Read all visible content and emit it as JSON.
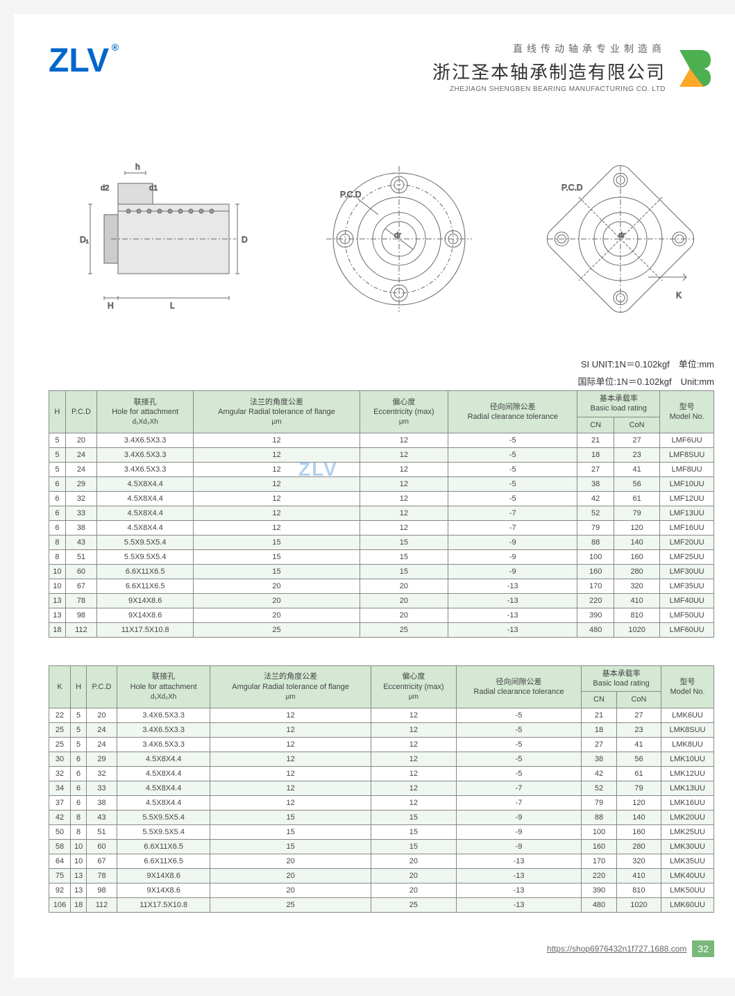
{
  "logo_text": "ZLV",
  "tagline": "直线传动轴承专业制造商",
  "company_cn": "浙江圣本轴承制造有限公司",
  "company_en": "ZHEJIAGN SHENGBEN BEARING MANUFACTURING CO. LTD",
  "logo_colors": {
    "green": "#4caf50",
    "orange": "#ffa726"
  },
  "watermark": "ZLV",
  "unit_line1": "SI UNIT:1N＝0.102kgf　单位:mm",
  "unit_line2": "国际单位:1N＝0.102kgf　Unit:mm",
  "diagram_labels": {
    "h": "h",
    "d2": "d2",
    "d1": "d1",
    "D1": "D1",
    "D": "D",
    "H": "H",
    "L": "L",
    "pcd": "P.C.D",
    "dr": "dr",
    "K": "K"
  },
  "table1": {
    "headers": {
      "H": "H",
      "PCD": "P.C.D",
      "hole_cn": "联接孔",
      "hole_en": "Hole for attachment",
      "hole_sub": "d₁Xd₂Xh",
      "flange_cn": "法兰的角度公差",
      "flange_en": "Amgular Radial tolerance of flange",
      "ecc_cn": "偏心度",
      "ecc_en": "Eccentricity (max)",
      "radial_cn": "径向间隙公差",
      "radial_en": "Radial clearance tolerance",
      "load_cn": "基本承载率",
      "load_en": "Basic load rating",
      "CN": "CN",
      "CoN": "CoN",
      "model_cn": "型号",
      "model_en": "Model No.",
      "um": "μm"
    },
    "rows": [
      [
        "5",
        "20",
        "3.4X6.5X3.3",
        "12",
        "12",
        "-5",
        "21",
        "27",
        "LMF6UU"
      ],
      [
        "5",
        "24",
        "3.4X6.5X3.3",
        "12",
        "12",
        "-5",
        "18",
        "23",
        "LMF8SUU"
      ],
      [
        "5",
        "24",
        "3.4X6.5X3.3",
        "12",
        "12",
        "-5",
        "27",
        "41",
        "LMF8UU"
      ],
      [
        "6",
        "29",
        "4.5X8X4.4",
        "12",
        "12",
        "-5",
        "38",
        "56",
        "LMF10UU"
      ],
      [
        "6",
        "32",
        "4.5X8X4.4",
        "12",
        "12",
        "-5",
        "42",
        "61",
        "LMF12UU"
      ],
      [
        "6",
        "33",
        "4.5X8X4.4",
        "12",
        "12",
        "-7",
        "52",
        "79",
        "LMF13UU"
      ],
      [
        "6",
        "38",
        "4.5X8X4.4",
        "12",
        "12",
        "-7",
        "79",
        "120",
        "LMF16UU"
      ],
      [
        "8",
        "43",
        "5.5X9.5X5.4",
        "15",
        "15",
        "-9",
        "88",
        "140",
        "LMF20UU"
      ],
      [
        "8",
        "51",
        "5.5X9.5X5.4",
        "15",
        "15",
        "-9",
        "100",
        "160",
        "LMF25UU"
      ],
      [
        "10",
        "60",
        "6.6X11X6.5",
        "15",
        "15",
        "-9",
        "160",
        "280",
        "LMF30UU"
      ],
      [
        "10",
        "67",
        "6.6X11X6.5",
        "20",
        "20",
        "-13",
        "170",
        "320",
        "LMF35UU"
      ],
      [
        "13",
        "78",
        "9X14X8.6",
        "20",
        "20",
        "-13",
        "220",
        "410",
        "LMF40UU"
      ],
      [
        "13",
        "98",
        "9X14X8.6",
        "20",
        "20",
        "-13",
        "390",
        "810",
        "LMF50UU"
      ],
      [
        "18",
        "112",
        "11X17.5X10.8",
        "25",
        "25",
        "-13",
        "480",
        "1020",
        "LMF60UU"
      ]
    ]
  },
  "table2": {
    "headers": {
      "K": "K"
    },
    "rows": [
      [
        "22",
        "5",
        "20",
        "3.4X6.5X3.3",
        "12",
        "12",
        "-5",
        "21",
        "27",
        "LMK6UU"
      ],
      [
        "25",
        "5",
        "24",
        "3.4X6.5X3.3",
        "12",
        "12",
        "-5",
        "18",
        "23",
        "LMK8SUU"
      ],
      [
        "25",
        "5",
        "24",
        "3.4X6.5X3.3",
        "12",
        "12",
        "-5",
        "27",
        "41",
        "LMK8UU"
      ],
      [
        "30",
        "6",
        "29",
        "4.5X8X4.4",
        "12",
        "12",
        "-5",
        "38",
        "56",
        "LMK10UU"
      ],
      [
        "32",
        "6",
        "32",
        "4.5X8X4.4",
        "12",
        "12",
        "-5",
        "42",
        "61",
        "LMK12UU"
      ],
      [
        "34",
        "6",
        "33",
        "4.5X8X4.4",
        "12",
        "12",
        "-7",
        "52",
        "79",
        "LMK13UU"
      ],
      [
        "37",
        "6",
        "38",
        "4.5X8X4.4",
        "12",
        "12",
        "-7",
        "79",
        "120",
        "LMK16UU"
      ],
      [
        "42",
        "8",
        "43",
        "5.5X9.5X5.4",
        "15",
        "15",
        "-9",
        "88",
        "140",
        "LMK20UU"
      ],
      [
        "50",
        "8",
        "51",
        "5.5X9.5X5.4",
        "15",
        "15",
        "-9",
        "100",
        "160",
        "LMK25UU"
      ],
      [
        "58",
        "10",
        "60",
        "6.6X11X6.5",
        "15",
        "15",
        "-9",
        "160",
        "280",
        "LMK30UU"
      ],
      [
        "64",
        "10",
        "67",
        "6.6X11X6.5",
        "20",
        "20",
        "-13",
        "170",
        "320",
        "LMK35UU"
      ],
      [
        "75",
        "13",
        "78",
        "9X14X8.6",
        "20",
        "20",
        "-13",
        "220",
        "410",
        "LMK40UU"
      ],
      [
        "92",
        "13",
        "98",
        "9X14X8.6",
        "20",
        "20",
        "-13",
        "390",
        "810",
        "LMK50UU"
      ],
      [
        "106",
        "18",
        "112",
        "11X17.5X10.8",
        "25",
        "25",
        "-13",
        "480",
        "1020",
        "LMK60UU"
      ]
    ]
  },
  "footer_url": "https://shop6976432n1f727.1688.com",
  "page_num": "32",
  "table_colors": {
    "header_bg": "#d4e8d4",
    "even_row_bg": "#f0f6f0",
    "border": "#888"
  }
}
